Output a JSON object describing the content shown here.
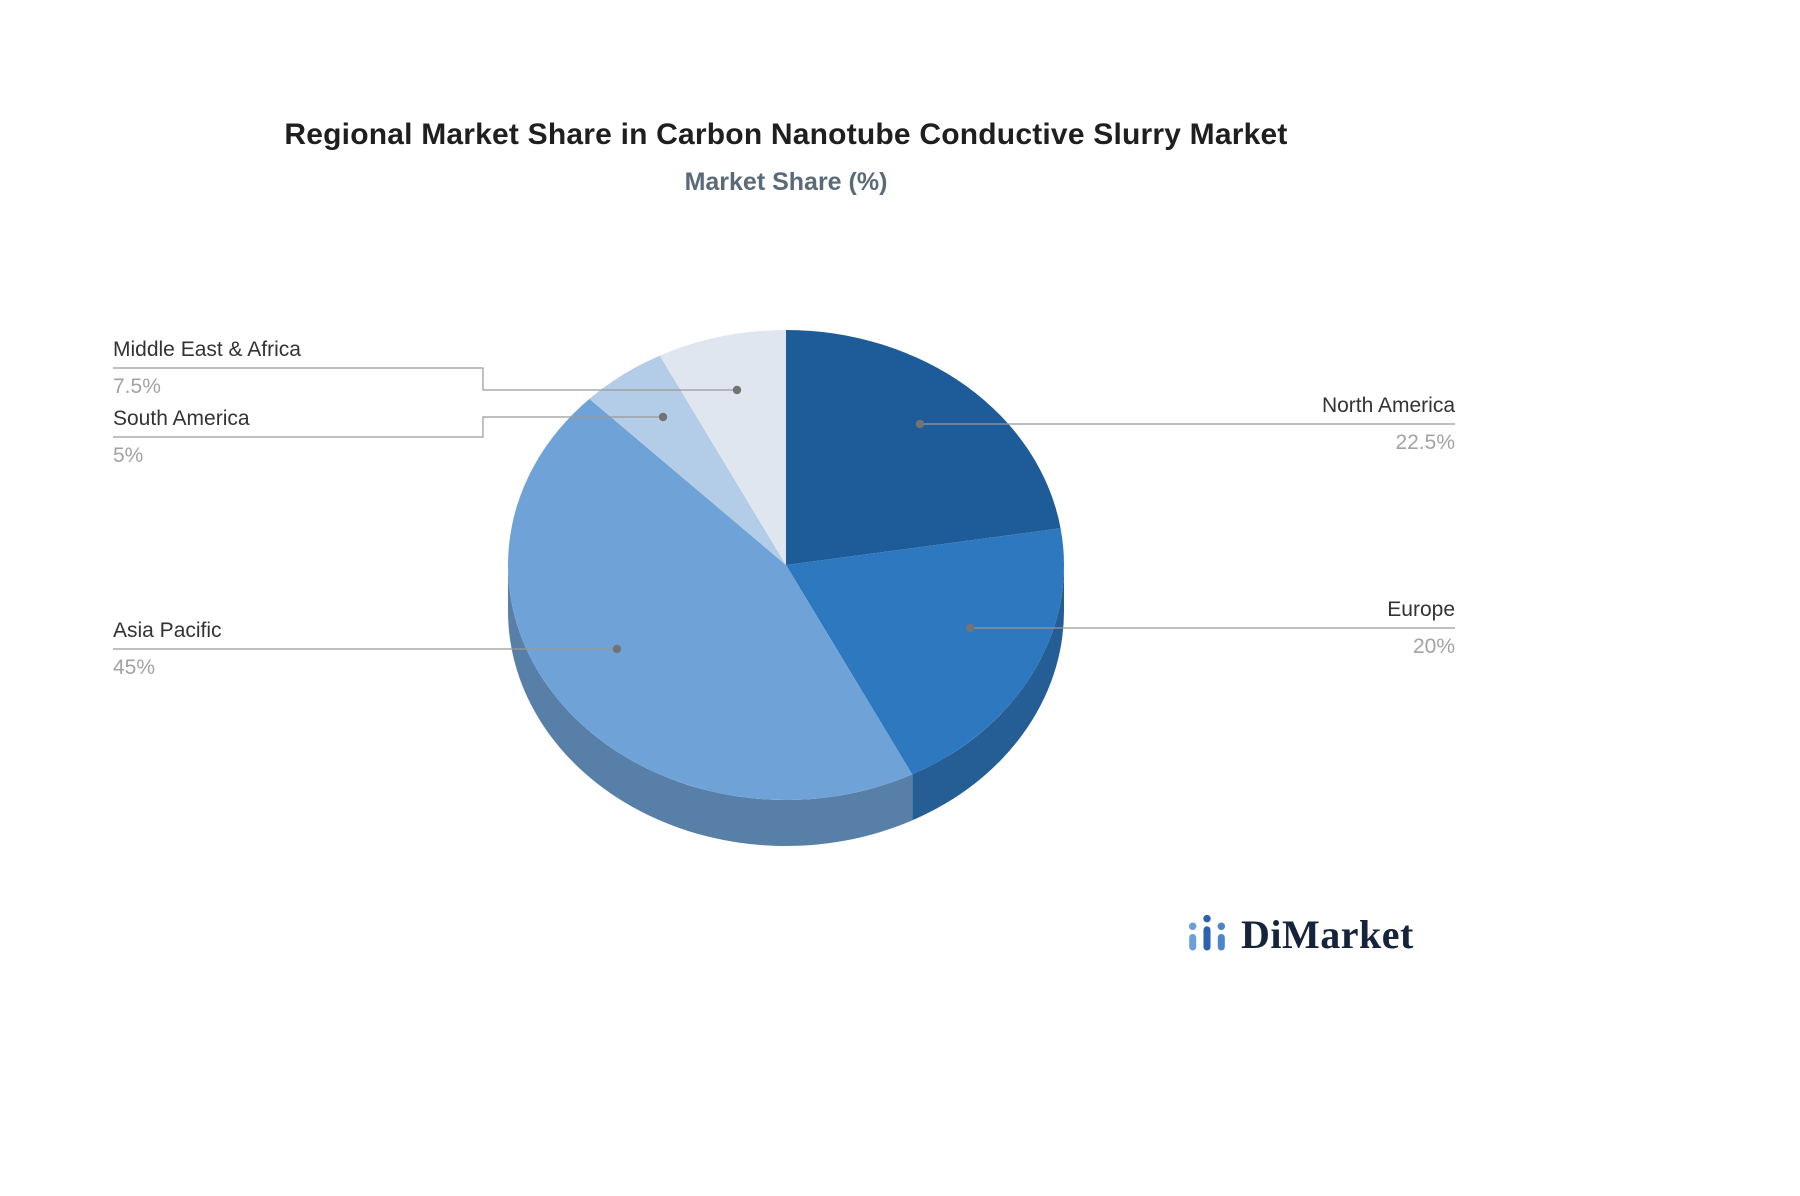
{
  "header": {
    "title": "Regional Market Share in Carbon Nanotube Conductive Slurry Market",
    "subtitle": "Market Share (%)"
  },
  "chart_data": {
    "type": "pie",
    "title": "Regional Market Share in Carbon Nanotube Conductive Slurry Market",
    "subtitle": "Market Share (%)",
    "style": "3d",
    "direction": "clockwise",
    "start_angle": "top",
    "legend": "none",
    "unit": "%",
    "series": [
      {
        "name": "North America",
        "value": 22.5,
        "label": "22.5%",
        "color": "#1e5b99"
      },
      {
        "name": "Europe",
        "value": 20,
        "label": "20%",
        "color": "#2e78bf"
      },
      {
        "name": "Asia Pacific",
        "value": 45,
        "label": "45%",
        "color": "#6fa3d8"
      },
      {
        "name": "South America",
        "value": 5,
        "label": "5%",
        "color": "#b3cde8"
      },
      {
        "name": "Middle East & Africa",
        "value": 7.5,
        "label": "7.5%",
        "color": "#e0e6ef"
      }
    ]
  },
  "logo": {
    "text": "DiMarket",
    "icon": "bar-chart-dots-icon"
  }
}
